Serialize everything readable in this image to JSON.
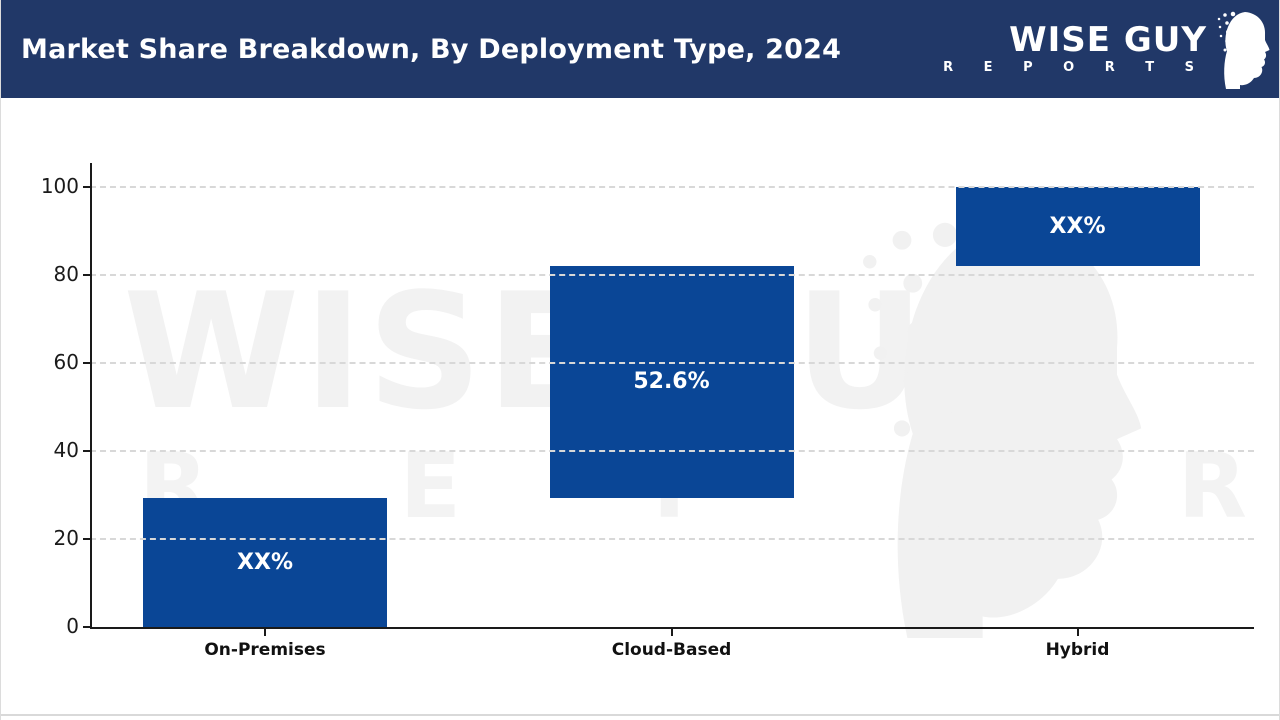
{
  "page": {
    "background": "#ffffff",
    "border_color": "#dcdcdc"
  },
  "header": {
    "background": "#213868",
    "title": "Market Share Breakdown, By Deployment Type, 2024",
    "logo": {
      "line1": "WISE GUY",
      "line2": "R E P O R T S",
      "head_icon": "dotted-head-profile"
    }
  },
  "watermark": {
    "line1": "WISE GUY",
    "line2": "R E P O R T S",
    "head_icon": "dotted-head-profile",
    "color": "#f2f2f2"
  },
  "chart_data": {
    "type": "bar",
    "variant": "floating-segment-waterfall",
    "title": "Market Share Breakdown, By Deployment Type, 2024",
    "categories": [
      "On-Premises",
      "Cloud-Based",
      "Hybrid"
    ],
    "segments": [
      {
        "category": "On-Premises",
        "start": 0,
        "end": 29.4,
        "label": "XX%"
      },
      {
        "category": "Cloud-Based",
        "start": 29.4,
        "end": 82.0,
        "label": "52.6%"
      },
      {
        "category": "Hybrid",
        "start": 82.0,
        "end": 100,
        "label": "XX%"
      }
    ],
    "yticks": [
      0,
      20,
      40,
      60,
      80,
      100
    ],
    "ylim": [
      0,
      100
    ],
    "xlabel": "",
    "ylabel": "",
    "legend": "none",
    "grid": "horizontal dashed lines drawn above bars",
    "bar_color": "#0a4696",
    "bar_label_color": "#ffffff",
    "axis_color": "#1a1a1a",
    "grid_color": "#d8d8d8"
  }
}
